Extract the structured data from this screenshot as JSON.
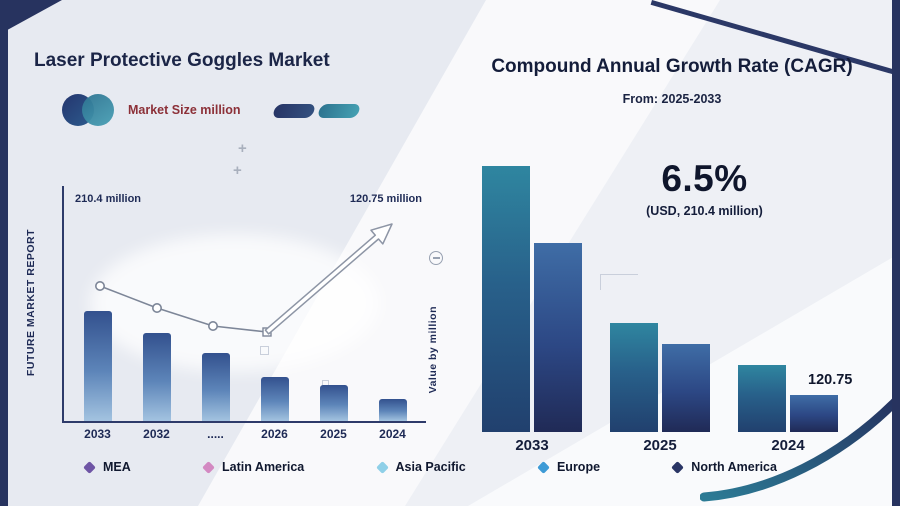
{
  "left_panel": {
    "title": "Laser Protective Goggles Market",
    "legend_label": "Market Size million",
    "report_side_label": "FUTURE MARKET REPORT",
    "value_axis_label": "Value by million",
    "annotation_left": "210.4 million",
    "annotation_right": "120.75 million",
    "plus_sign": "+"
  },
  "right_panel": {
    "title": "Compound Annual Growth Rate (CAGR)",
    "subtitle": "From: 2025-2033",
    "cagr_value": "6.5%",
    "cagr_note": "(USD, 210.4 million)",
    "callout_value": "120.75"
  },
  "region_legend": {
    "items": [
      {
        "label": "MEA",
        "color": "#6f55a5"
      },
      {
        "label": "Latin America",
        "color": "#d389c2"
      },
      {
        "label": "Asia Pacific",
        "color": "#8fd0e8"
      },
      {
        "label": "Europe",
        "color": "#3e9bd6"
      },
      {
        "label": "North America",
        "color": "#2a3565"
      }
    ]
  },
  "chart_data": [
    {
      "type": "bar",
      "title": "Laser Protective Goggles Market",
      "legend": [
        "Market Size million"
      ],
      "categories": [
        "2033",
        "2032",
        ".....",
        "2026",
        "2025",
        "2024"
      ],
      "values": [
        100,
        80,
        62,
        40,
        33,
        20
      ],
      "ylabel": "Value by million",
      "annotations": [
        "210.4 million",
        "120.75 million"
      ]
    },
    {
      "type": "bar",
      "title": "Compound Annual Growth Rate (CAGR)",
      "subtitle": "From: 2025-2033",
      "categories": [
        "2033",
        "2025",
        "2024"
      ],
      "series": [
        {
          "name": "series-1",
          "values": [
            100,
            41,
            25
          ]
        },
        {
          "name": "series-2",
          "values": [
            71,
            33,
            14
          ]
        }
      ],
      "annotations": [
        "6.5%",
        "(USD, 210.4 million)",
        "120.75"
      ]
    }
  ]
}
